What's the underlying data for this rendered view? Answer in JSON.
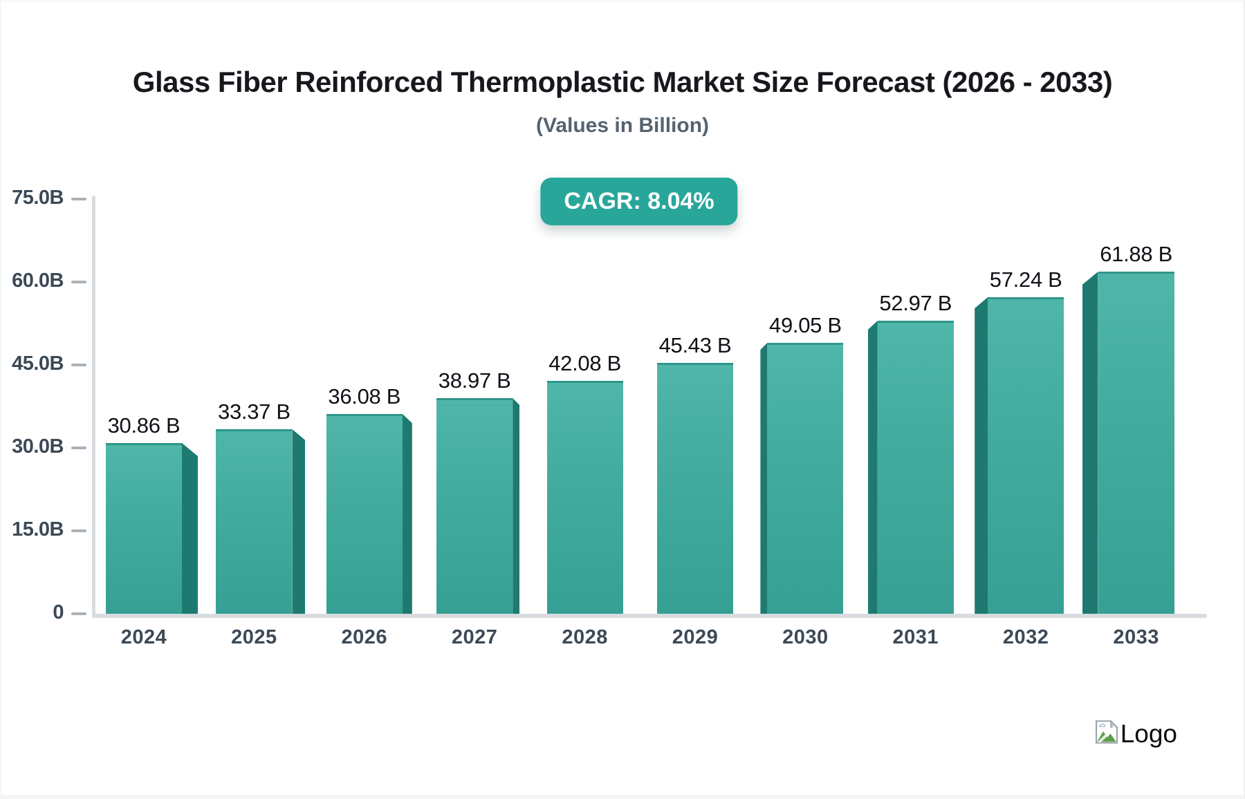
{
  "page": {
    "title": "Glass Fiber Reinforced Thermoplastic Market Size Forecast (2026 - 2033)",
    "subtitle": "(Values in Billion)",
    "cagr_badge": "CAGR: 8.04%",
    "logo_alt_text": "Logo"
  },
  "colors": {
    "bar_face_top": "#4fb6a9",
    "bar_face_bottom": "#35a093",
    "bar_top_edge": "#2e9689",
    "bar_side_3d": "#1e7a71",
    "badge_background": "#29a69a",
    "axis_line": "#d8dce0",
    "tick_text": "#3c4956",
    "title_text": "#16181d",
    "subtitle_text": "#566270"
  },
  "chart_data": {
    "type": "bar",
    "title": "Glass Fiber Reinforced Thermoplastic Market Size Forecast (2026 - 2033)",
    "subtitle": "(Values in Billion)",
    "annotation": "CAGR: 8.04%",
    "xlabel": "",
    "ylabel": "",
    "ylim": [
      0,
      75
    ],
    "grid": false,
    "legend": false,
    "categories": [
      "2024",
      "2025",
      "2026",
      "2027",
      "2028",
      "2029",
      "2030",
      "2031",
      "2032",
      "2033"
    ],
    "values": [
      30.86,
      33.37,
      36.08,
      38.97,
      42.08,
      45.43,
      49.05,
      52.97,
      57.24,
      61.88
    ],
    "value_labels": [
      "30.86 B",
      "33.37 B",
      "36.08 B",
      "38.97 B",
      "42.08 B",
      "45.43 B",
      "49.05 B",
      "52.97 B",
      "57.24 B",
      "61.88 B"
    ],
    "yticks": [
      {
        "value": 0,
        "label": "0"
      },
      {
        "value": 15,
        "label": "15.0B"
      },
      {
        "value": 30,
        "label": "30.0B"
      },
      {
        "value": 45,
        "label": "45.0B"
      },
      {
        "value": 60,
        "label": "60.0B"
      },
      {
        "value": 75,
        "label": "75.0B"
      }
    ]
  }
}
